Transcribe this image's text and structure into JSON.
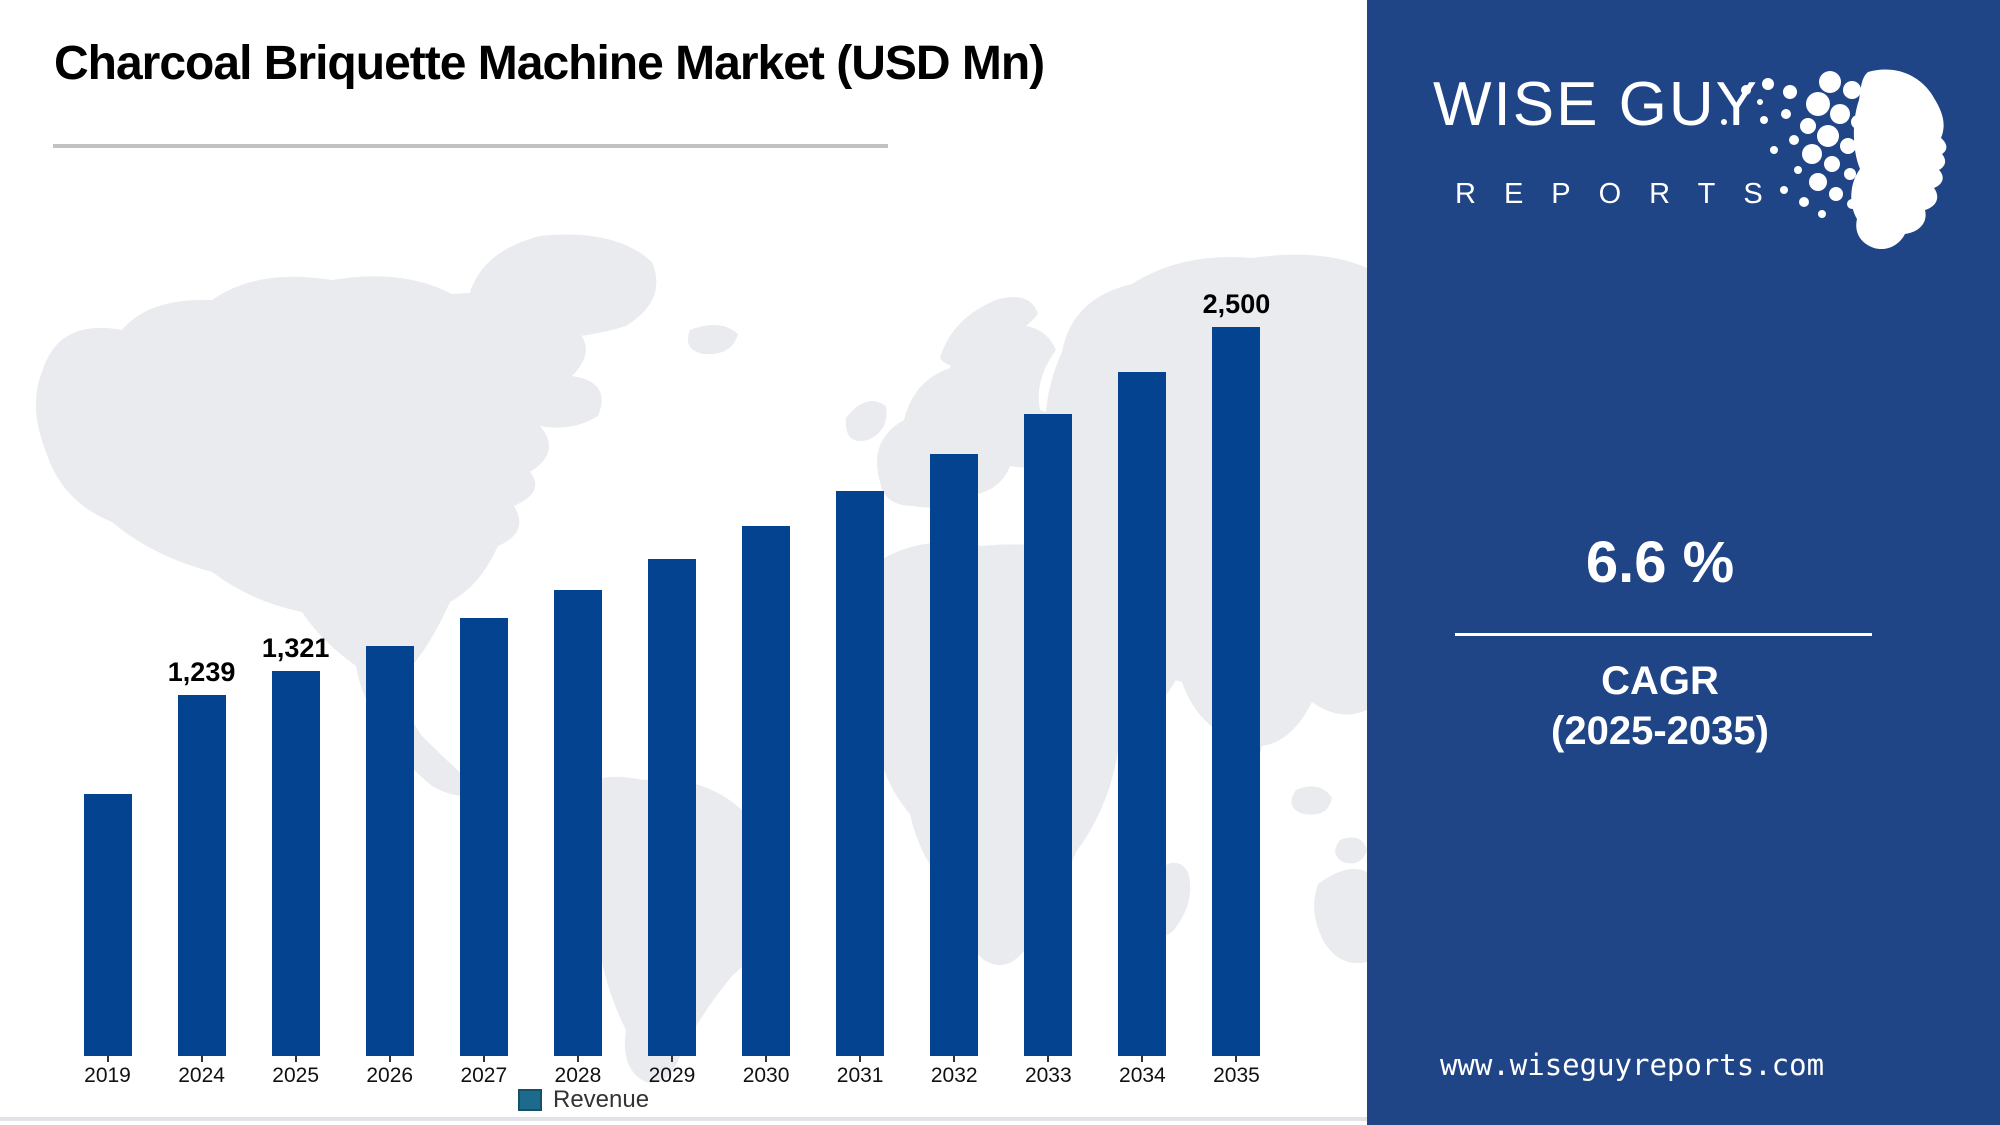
{
  "chart_data": {
    "type": "bar",
    "title": "Charcoal Briquette Machine Market (USD Mn)",
    "unit": "USD Mn",
    "categories": [
      "2019",
      "2024",
      "2025",
      "2026",
      "2027",
      "2028",
      "2029",
      "2030",
      "2031",
      "2032",
      "2033",
      "2034",
      "2035"
    ],
    "values": [
      900,
      1239,
      1321,
      1408,
      1501,
      1600,
      1706,
      1818,
      1938,
      2066,
      2203,
      2348,
      2500
    ],
    "value_labels": {
      "2024": "1,239",
      "2025": "1,321",
      "2035": "2,500"
    },
    "series_name": "Revenue",
    "bar_color": "#04438f",
    "legend_position": "bottom",
    "xlabel": "",
    "ylabel": "",
    "ylim": [
      0,
      2700
    ],
    "grid": false
  },
  "legend": {
    "label": "Revenue",
    "swatch_color": "#1d6b8c"
  },
  "panel": {
    "logo_line1": "WISE GUY",
    "logo_line2": "REPORTS",
    "cagr_value": "6.6 %",
    "cagr_line1": "CAGR",
    "cagr_line2": "(2025-2035)",
    "website": "www.wiseguyreports.com",
    "bg_color": "#1f4586"
  },
  "colors": {
    "bar": "#04438f",
    "panel_bg": "#1f4586",
    "map_watermark": "#e9ebee",
    "legend_swatch": "#1d6b8c",
    "title_underline": "#c2c2c2",
    "top_border": "#d2d2d2"
  }
}
